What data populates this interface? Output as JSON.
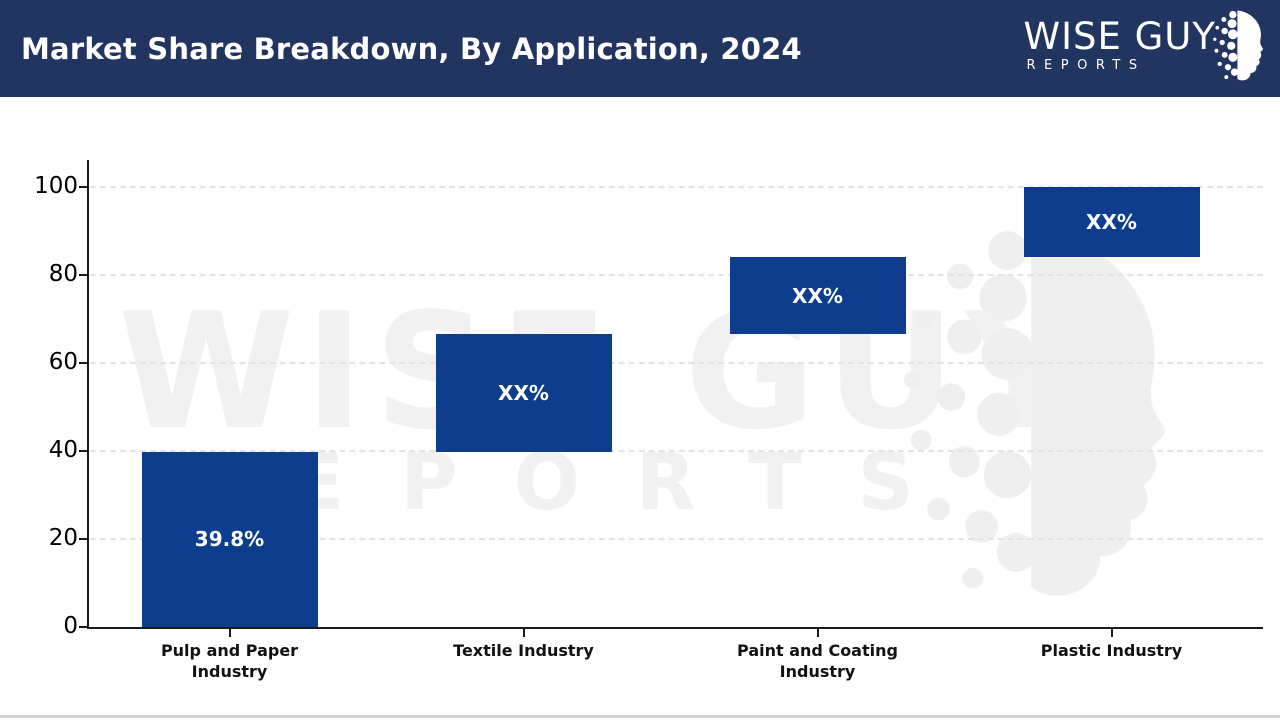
{
  "header": {
    "title": "Market Share Breakdown, By Application, 2024",
    "brand_line1": "WISE GUY",
    "brand_line2": "REPORTS",
    "bg_color": "#223560"
  },
  "watermark": {
    "line1": "WISE GUY",
    "line2": "REPORTS"
  },
  "chart_data": {
    "type": "bar",
    "subtype": "waterfall",
    "title": "Market Share Breakdown, By Application, 2024",
    "categories": [
      "Pulp and Paper Industry",
      "Textile Industry",
      "Paint and Coating Industry",
      "Plastic Industry"
    ],
    "segments": [
      {
        "category": "Pulp and Paper Industry",
        "start": 0,
        "end": 39.8,
        "label": "39.8%"
      },
      {
        "category": "Textile Industry",
        "start": 39.8,
        "end": 66.5,
        "label": "XX%"
      },
      {
        "category": "Paint and Coating Industry",
        "start": 66.5,
        "end": 84,
        "label": "XX%"
      },
      {
        "category": "Plastic Industry",
        "start": 84,
        "end": 100,
        "label": "XX%"
      }
    ],
    "y_ticks": [
      0,
      20,
      40,
      60,
      80,
      100
    ],
    "ylim": [
      0,
      100
    ],
    "bar_color": "#0d3d8c",
    "bar_label_color": "#ffffff",
    "gridlines": "horizontal dashed at each y tick",
    "legend": "none"
  }
}
